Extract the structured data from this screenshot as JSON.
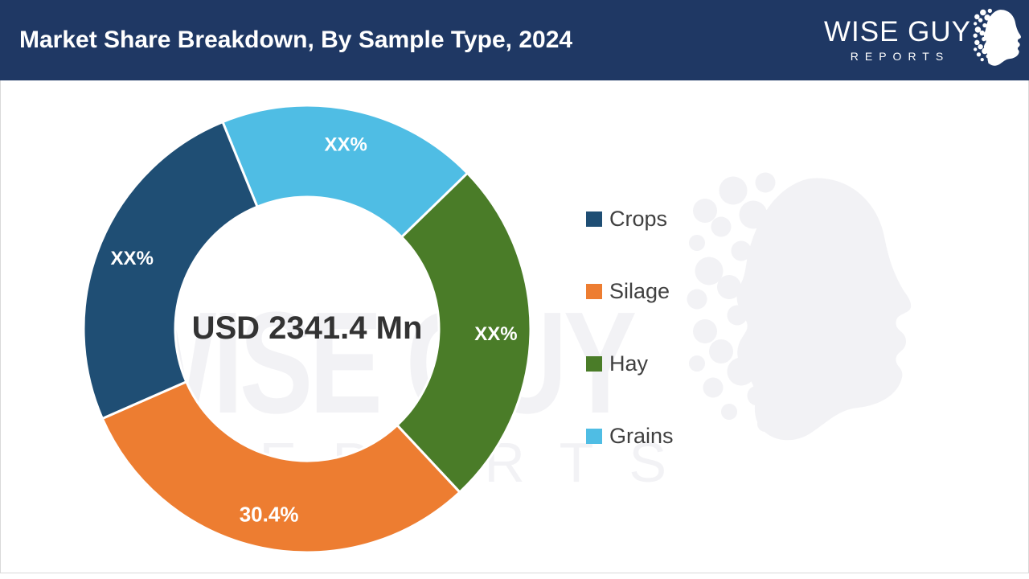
{
  "header": {
    "title": "Market Share Breakdown, By Sample Type, 2024",
    "bg_color": "#1f3864",
    "logo": {
      "line1": "WISE GUY",
      "line2": "REPORTS"
    }
  },
  "chart_data": {
    "type": "pie",
    "variant": "donut",
    "title": "Market Share Breakdown, By Sample Type, 2024",
    "center_label": "USD 2341.4 Mn",
    "legend_position": "right",
    "clockwise": true,
    "start_angle_deg_from_12": -22.2,
    "segments": [
      {
        "name": "Grains",
        "display_label": "XX%",
        "value_pct_est": 18.9,
        "value_shown": false,
        "color": "#4fbde4"
      },
      {
        "name": "Hay",
        "display_label": "XX%",
        "value_pct_est": 25.3,
        "value_shown": false,
        "color": "#4a7c28"
      },
      {
        "name": "Silage",
        "display_label": "30.4%",
        "value_pct_est": 30.4,
        "value_shown": true,
        "color": "#ed7d31"
      },
      {
        "name": "Crops",
        "display_label": "XX%",
        "value_pct_est": 25.4,
        "value_shown": false,
        "color": "#1f4e74"
      }
    ]
  },
  "legend": {
    "items": [
      {
        "label": "Crops",
        "color": "#1f4e74"
      },
      {
        "label": "Silage",
        "color": "#ed7d31"
      },
      {
        "label": "Hay",
        "color": "#4a7c28"
      },
      {
        "label": "Grains",
        "color": "#4fbde4"
      }
    ]
  },
  "watermark": {
    "text1": "WISE GUY",
    "text2": "REPORTS"
  },
  "colors": {
    "header_bg": "#1f3864",
    "center_text": "#333333",
    "legend_text": "#404040",
    "separator": "#ffffff",
    "watermark": "#f2f2f5",
    "frame_border": "#d9d9d9"
  }
}
